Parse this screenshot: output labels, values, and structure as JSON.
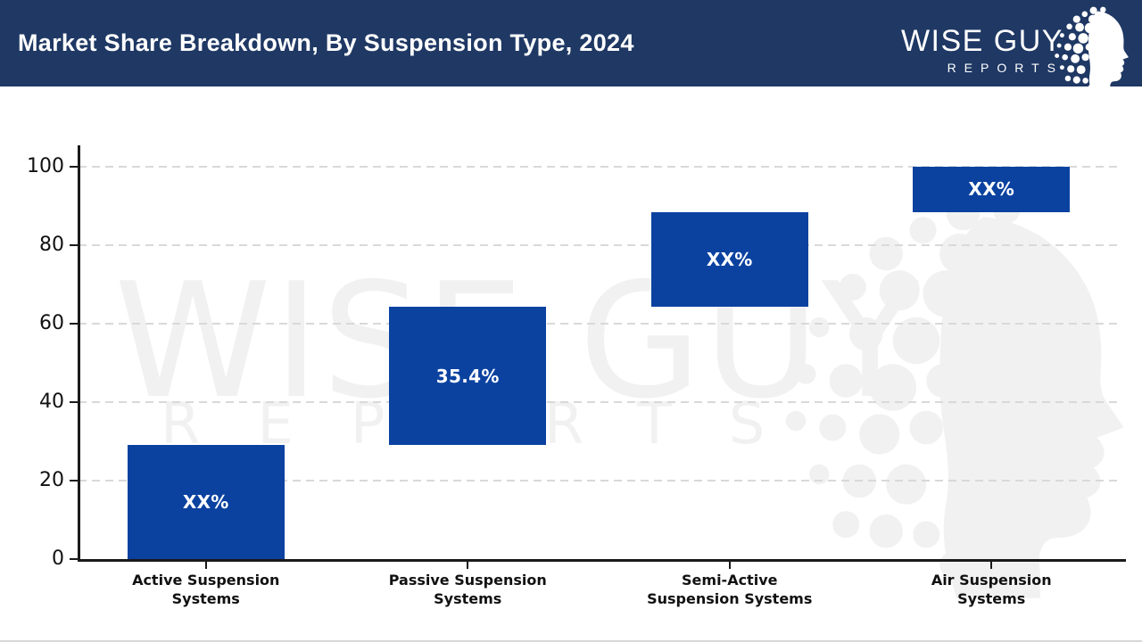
{
  "header": {
    "title": "Market Share Breakdown, By Suspension Type, 2024",
    "logo": {
      "name": "WISE GUY",
      "sub": "REPORTS"
    }
  },
  "watermark": {
    "line1": "WISE GUY",
    "line2": "REPORTS"
  },
  "colors": {
    "header_bg": "#1f3864",
    "bar": "#0b42a0",
    "bar_label": "#ffffff",
    "gridline": "#d9d9d9",
    "watermark": "#f1f1f1"
  },
  "chart_data": {
    "type": "bar",
    "subtype": "floating_segment_waterfall",
    "title": "Market Share Breakdown, By Suspension Type, 2024",
    "categories": [
      "Active Suspension Systems",
      "Passive Suspension Systems",
      "Semi-Active Suspension Systems",
      "Air Suspension Systems"
    ],
    "category_lines": [
      [
        "Active Suspension",
        "Systems"
      ],
      [
        "Passive Suspension",
        "Systems"
      ],
      [
        "Semi-Active",
        "Suspension Systems"
      ],
      [
        "Air Suspension",
        "Systems"
      ]
    ],
    "segments": [
      {
        "category": "Active Suspension Systems",
        "start": 0,
        "end": 29,
        "label": "XX%"
      },
      {
        "category": "Passive Suspension Systems",
        "start": 29,
        "end": 64.4,
        "label": "35.4%"
      },
      {
        "category": "Semi-Active Suspension Systems",
        "start": 64.4,
        "end": 88.5,
        "label": "XX%"
      },
      {
        "category": "Air Suspension Systems",
        "start": 88.5,
        "end": 100,
        "label": "XX%"
      }
    ],
    "ylim": [
      0,
      100
    ],
    "yticks": [
      0,
      20,
      40,
      60,
      80,
      100
    ],
    "xlabel": "",
    "ylabel": "",
    "grid": "horizontal_dashed",
    "legend": "none",
    "bar_color": "#0b42a0",
    "bar_label_color": "#ffffff"
  }
}
